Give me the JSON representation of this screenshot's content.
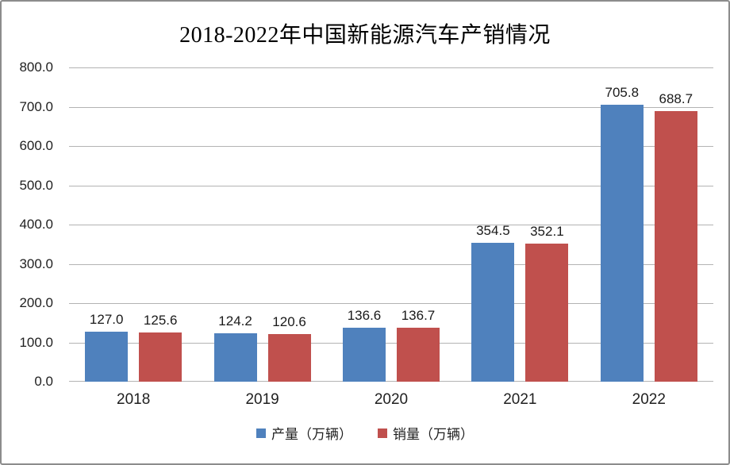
{
  "window": {
    "background": "#ffffff",
    "border_color": "#8c8c8c"
  },
  "colors": {
    "gridline": "#b3b3b3",
    "axis_text": "#1f1f1f",
    "title_text": "#000000"
  },
  "chart_data": {
    "type": "bar",
    "title": "2018-2022年中国新能源汽车产销情况",
    "categories": [
      "2018",
      "2019",
      "2020",
      "2021",
      "2022"
    ],
    "series": [
      {
        "name": "产量（万辆）",
        "key": "production",
        "color": "#4F81BD",
        "values": [
          127.0,
          124.2,
          136.6,
          354.5,
          705.8
        ]
      },
      {
        "name": "销量（万辆）",
        "key": "sales",
        "color": "#C0504D",
        "values": [
          125.6,
          120.6,
          136.7,
          352.1,
          688.7
        ]
      }
    ],
    "xlabel": "",
    "ylabel": "",
    "ylim": [
      0,
      800
    ],
    "ytick_step": 100,
    "ytick_decimals": 1,
    "value_label_decimals": 1,
    "grid": true,
    "legend_position": "bottom"
  }
}
